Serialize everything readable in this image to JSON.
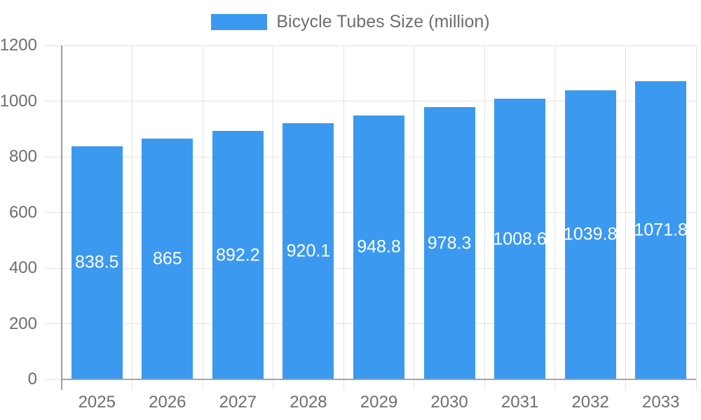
{
  "chart_data": {
    "type": "bar",
    "title": "Bicycle Tubes Size (million)",
    "legend": {
      "label": "Bicycle Tubes Size (million)",
      "position": "top-center"
    },
    "categories": [
      "2025",
      "2026",
      "2027",
      "2028",
      "2029",
      "2030",
      "2031",
      "2032",
      "2033"
    ],
    "series": [
      {
        "name": "Bicycle Tubes Size (million)",
        "values": [
          838.5,
          865,
          892.2,
          920.1,
          948.8,
          978.3,
          1008.6,
          1039.8,
          1071.8
        ]
      }
    ],
    "value_labels": [
      "838.5",
      "865",
      "892.2",
      "920.1",
      "948.8",
      "978.3",
      "1008.6",
      "1039.8",
      "1071.8"
    ],
    "xlabel": "",
    "ylabel": "",
    "ylim": [
      0,
      1200
    ],
    "y_ticks": [
      0,
      200,
      400,
      600,
      800,
      1000,
      1200
    ],
    "grid": true,
    "colors": {
      "bar": "#3C99F0",
      "gridline": "#E3E3E3",
      "axis_line": "#A5A5A5",
      "tick_text": "#6E6E6E",
      "value_label_text": "#FFFFFF",
      "background": "#FFFFFF"
    }
  }
}
